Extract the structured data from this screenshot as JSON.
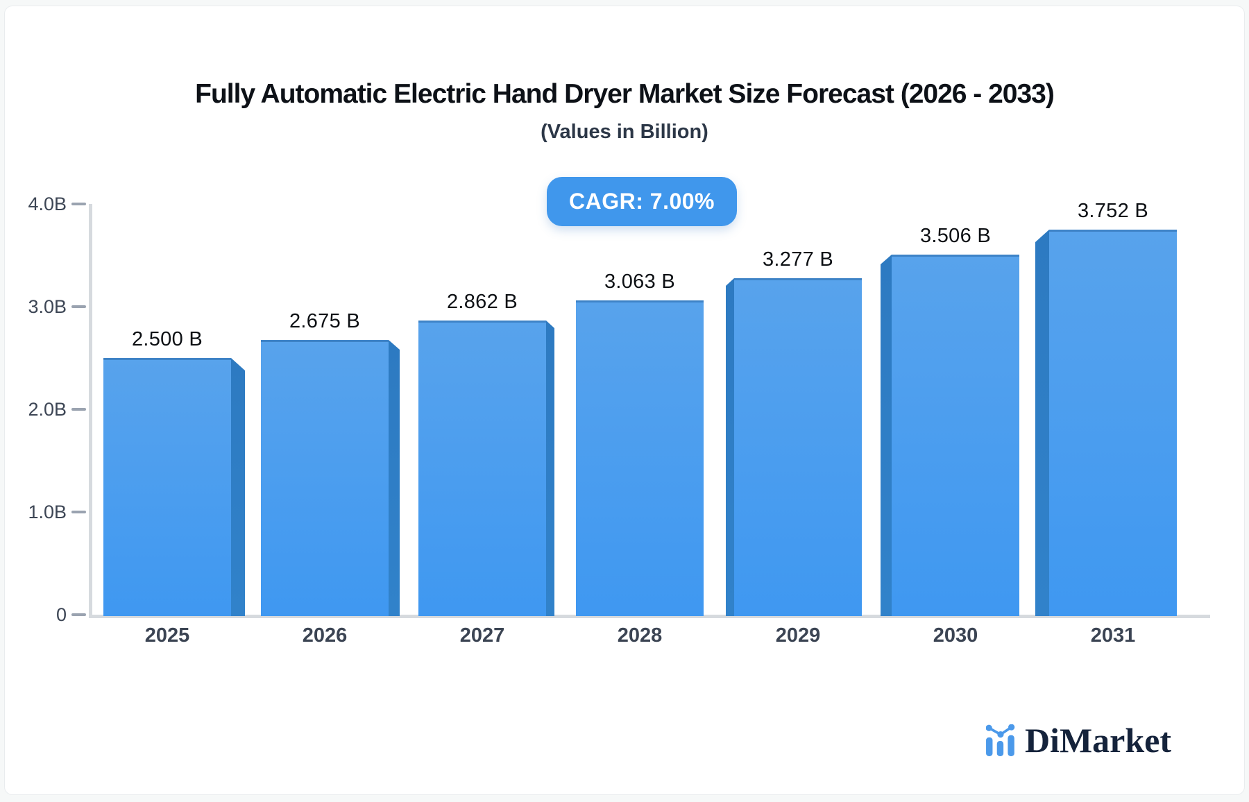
{
  "page": {
    "background": "#f6f8f8",
    "card_background": "#ffffff",
    "card_border": "#e9ecee"
  },
  "badge": {
    "label": "CAGR: 7.00%",
    "background": "#4097ec",
    "text_color": "#ffffff"
  },
  "chart_data": {
    "type": "bar",
    "title": "Fully Automatic Electric Hand Dryer Market Size Forecast (2026 - 2033)",
    "subtitle": "(Values in Billion)",
    "categories": [
      "2025",
      "2026",
      "2027",
      "2028",
      "2029",
      "2030",
      "2031"
    ],
    "values": [
      2.5,
      2.675,
      2.862,
      3.063,
      3.277,
      3.506,
      3.752
    ],
    "value_labels": [
      "2.500 B",
      "2.675 B",
      "2.862 B",
      "3.063 B",
      "3.277 B",
      "3.506 B",
      "3.752 B"
    ],
    "y_ticks": [
      {
        "label": "4.0B",
        "value": 4.0
      },
      {
        "label": "3.0B",
        "value": 3.0
      },
      {
        "label": "2.0B",
        "value": 2.0
      },
      {
        "label": "1.0B",
        "value": 1.0
      },
      {
        "label": "0",
        "value": 0.0
      }
    ],
    "ylim": [
      0,
      4.0
    ],
    "xlabel": "",
    "ylabel": "",
    "grid": "off",
    "legend": "none",
    "bar_style": "3d-perspective",
    "colors": {
      "bar_face_top": "#58a3ec",
      "bar_face_bottom": "#3f98f1",
      "bar_side": "#2d7ac1",
      "axis_line": "#d6dade",
      "tick_dash": "#9aa3b0",
      "axis_label": "#3d4655",
      "value_label": "#0d1014"
    }
  },
  "logo": {
    "text": "DiMarket",
    "icon": "bar-line-chart-icon",
    "icon_color": "#4b99ea",
    "text_color": "#15233b"
  }
}
